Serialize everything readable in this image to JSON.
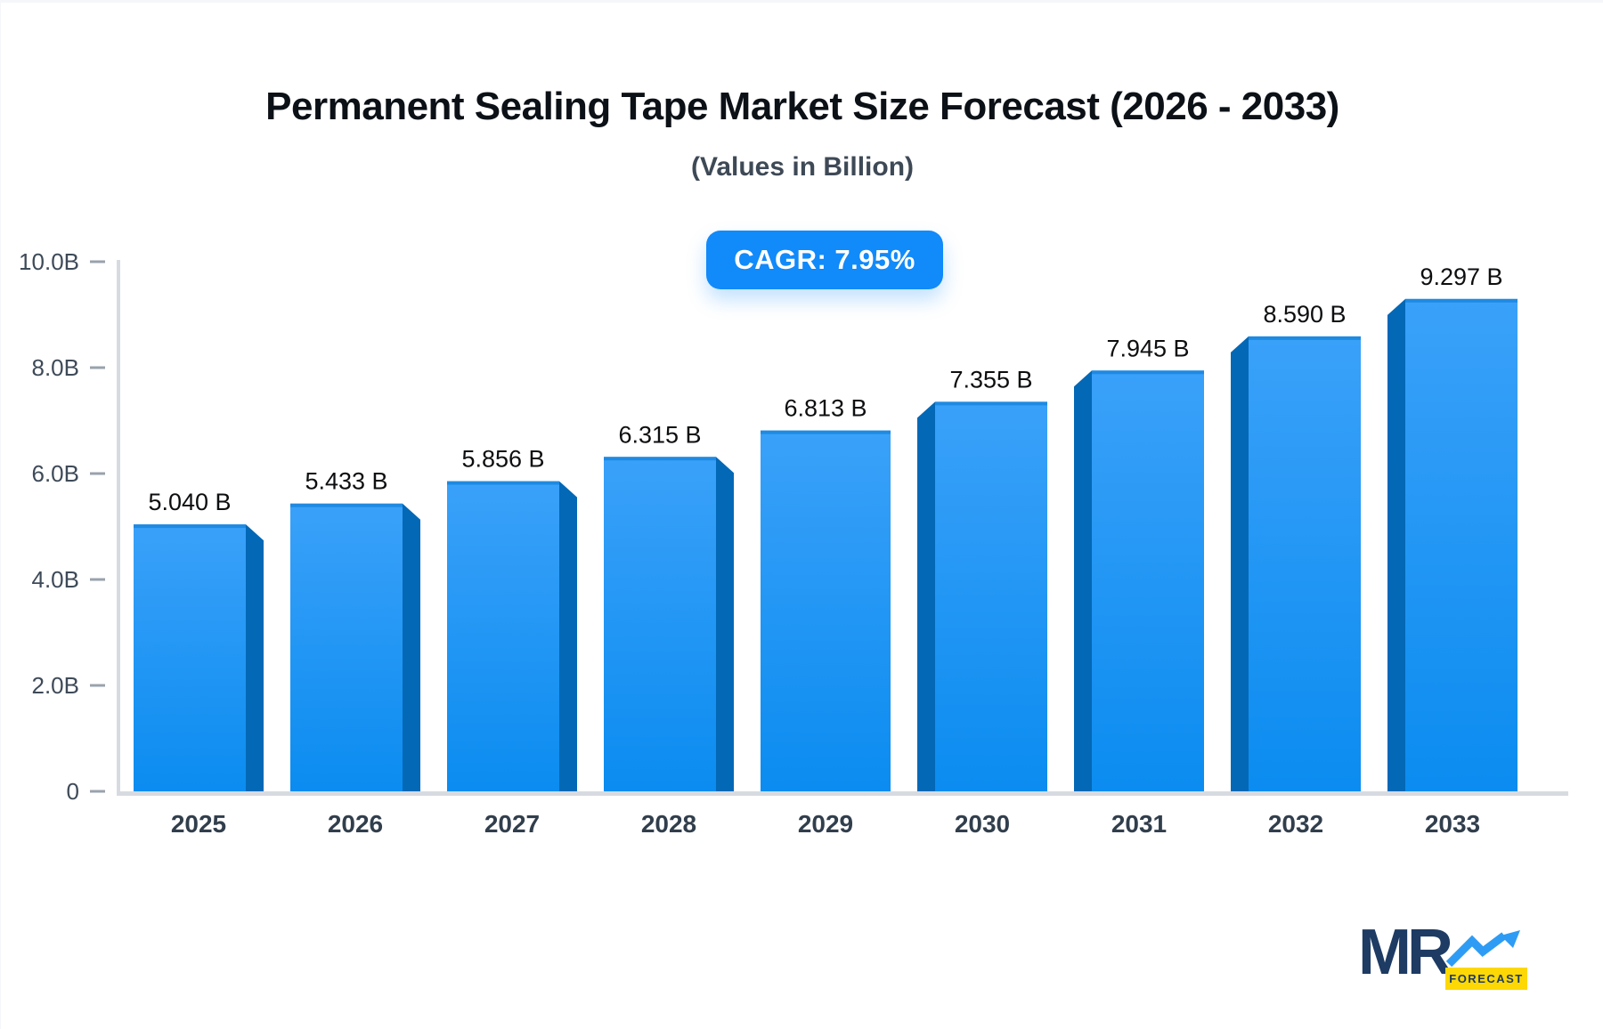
{
  "header": {
    "title": "Permanent Sealing Tape Market Size Forecast (2026 - 2033)",
    "subtitle": "(Values in Billion)",
    "cagr_badge": "CAGR: 7.95%"
  },
  "chart_data": {
    "type": "bar",
    "title": "Permanent Sealing Tape Market Size Forecast (2026 - 2033)",
    "subtitle": "(Values in Billion)",
    "cagr": "7.95%",
    "categories": [
      "2025",
      "2026",
      "2027",
      "2028",
      "2029",
      "2030",
      "2031",
      "2032",
      "2033"
    ],
    "values": [
      5.04,
      5.433,
      5.856,
      6.315,
      6.813,
      7.355,
      7.945,
      8.59,
      9.297
    ],
    "value_labels": [
      "5.040 B",
      "5.433 B",
      "5.856 B",
      "6.315 B",
      "6.813 B",
      "7.355 B",
      "7.945 B",
      "8.590 B",
      "9.297 B"
    ],
    "ylim": [
      0,
      10
    ],
    "y_tick_values": [
      0,
      2,
      4,
      6,
      8,
      10
    ],
    "y_tick_labels": [
      "0",
      "2.0B",
      "4.0B",
      "6.0B",
      "8.0B",
      "10.0B"
    ],
    "grid": false,
    "legend": false,
    "colors": {
      "bar_top": "#3aa1f9",
      "bar_bottom": "#0b8cf0",
      "bar_side": "#0368b6",
      "bar_edge": "#1b86de",
      "badge_bg": "#118afa",
      "badge_text": "#ffffff",
      "axis": "#d7dbe1",
      "tick": "#99a2ac",
      "tick_label": "#3e4a58",
      "category_label": "#313e4c",
      "value_label": "#0d0e10"
    }
  },
  "logo": {
    "mr": "MR",
    "forecast": "FORECAST",
    "navy": "#1d3b63",
    "arrow_blue": "#2e9cf4",
    "yellow": "#fdd804"
  }
}
